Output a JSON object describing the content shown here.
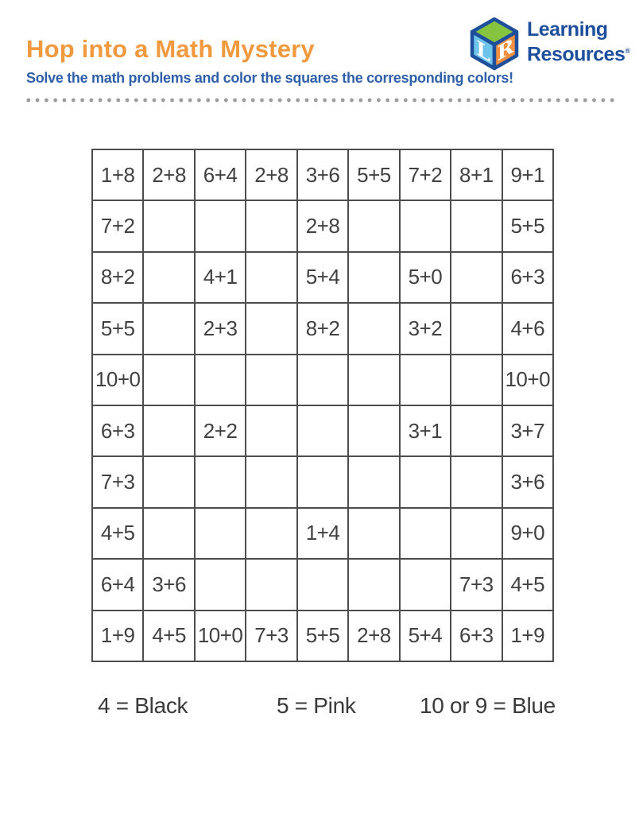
{
  "colors": {
    "title": "#F0993F",
    "subtitle": "#2E5FA9",
    "brand_text": "#1D4F9D",
    "cube_outline": "#1D4F9D",
    "cube_top": "#86C440",
    "cube_left": "#6EC4EA",
    "cube_right": "#F09040",
    "grid_line": "#4D4D4D",
    "cell_text": "#414141",
    "legend_text": "#3A3A3A",
    "dots": "#9C9C9C",
    "page_bg": "#FFFFFF"
  },
  "header": {
    "title": "Hop into a Math Mystery",
    "subtitle": "Solve the math problems and color the squares the corresponding colors!"
  },
  "logo": {
    "line1": "Learning",
    "line2": "Resources",
    "registered": "®",
    "cube_left_letter": "L",
    "cube_right_letter": "R"
  },
  "grid": {
    "rows": 10,
    "columns": 9,
    "cells": [
      [
        "1+8",
        "2+8",
        "6+4",
        "2+8",
        "3+6",
        "5+5",
        "7+2",
        "8+1",
        "9+1"
      ],
      [
        "7+2",
        "",
        "",
        "",
        "2+8",
        "",
        "",
        "",
        "5+5"
      ],
      [
        "8+2",
        "",
        "4+1",
        "",
        "5+4",
        "",
        "5+0",
        "",
        "6+3"
      ],
      [
        "5+5",
        "",
        "2+3",
        "",
        "8+2",
        "",
        "3+2",
        "",
        "4+6"
      ],
      [
        "10+0",
        "",
        "",
        "",
        "",
        "",
        "",
        "",
        "10+0"
      ],
      [
        "6+3",
        "",
        "2+2",
        "",
        "",
        "",
        "3+1",
        "",
        "3+7"
      ],
      [
        "7+3",
        "",
        "",
        "",
        "",
        "",
        "",
        "",
        "3+6"
      ],
      [
        "4+5",
        "",
        "",
        "",
        "1+4",
        "",
        "",
        "",
        "9+0"
      ],
      [
        "6+4",
        "3+6",
        "",
        "",
        "",
        "",
        "",
        "7+3",
        "4+5"
      ],
      [
        "1+9",
        "4+5",
        "10+0",
        "7+3",
        "5+5",
        "2+8",
        "5+4",
        "6+3",
        "1+9"
      ]
    ]
  },
  "legend": {
    "items": [
      "4 = Black",
      "5 = Pink",
      "10 or 9 = Blue"
    ]
  }
}
